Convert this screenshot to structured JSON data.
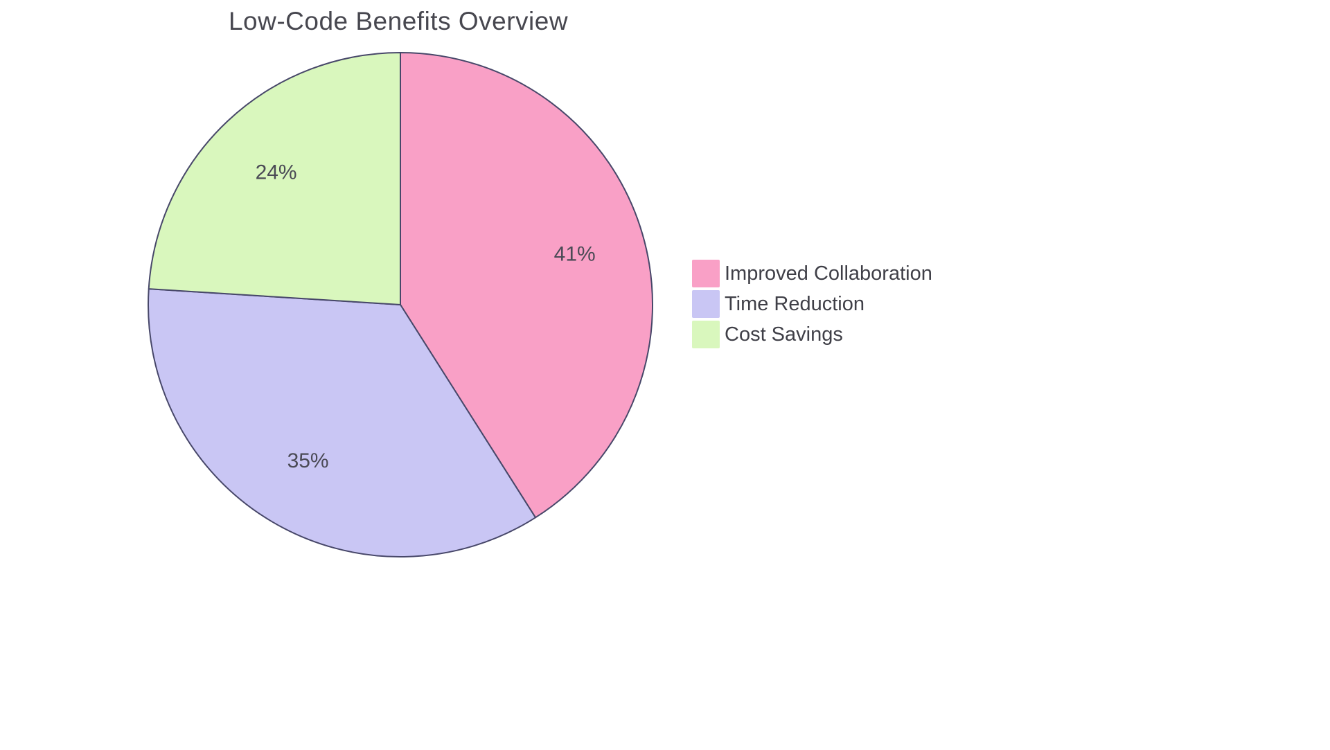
{
  "title": "Low-Code Benefits Overview",
  "chart_data": {
    "type": "pie",
    "title": "Low-Code Benefits Overview",
    "series": [
      {
        "name": "Improved Collaboration",
        "value": 41,
        "label": "41%",
        "color": "#f9a0c6"
      },
      {
        "name": "Time Reduction",
        "value": 35,
        "label": "35%",
        "color": "#c9c6f4"
      },
      {
        "name": "Cost Savings",
        "value": 24,
        "label": "24%",
        "color": "#d9f7bd"
      }
    ],
    "start_angle_deg": -90,
    "direction": "clockwise",
    "stroke_color": "#474769",
    "label_color": "#4a4a55",
    "legend_position": "right",
    "background": "#ffffff"
  }
}
